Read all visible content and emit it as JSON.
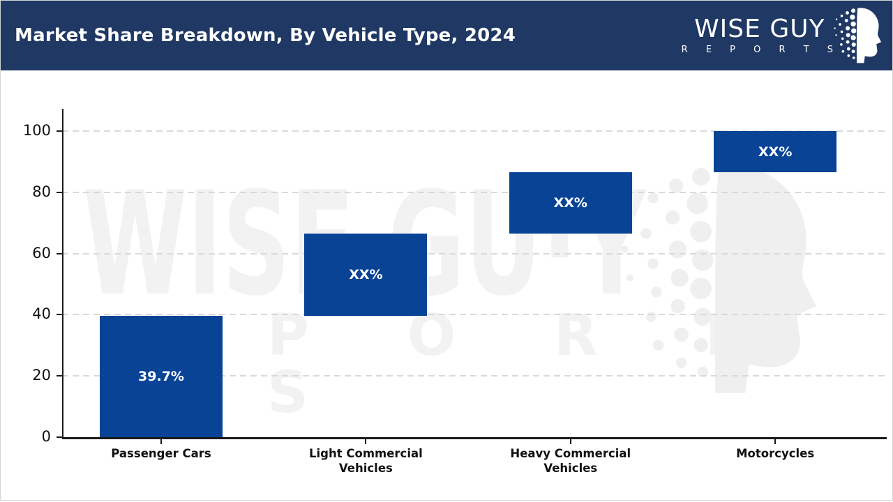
{
  "header": {
    "logo_wordmark": "WISE GUY",
    "logo_reports": "R E P O R T S"
  },
  "watermark": {
    "line1": "WISE GU·Y",
    "line2": "P O R T S"
  },
  "chart_data": {
    "type": "bar",
    "subtype": "floating-segment-waterfall",
    "title": "Market Share Breakdown, By Vehicle Type, 2024",
    "categories": [
      "Passenger Cars",
      "Light Commercial\nVehicles",
      "Heavy Commercial\nVehicles",
      "Motorcycles"
    ],
    "bars": [
      {
        "category": "Passenger Cars",
        "start": 0,
        "end": 39.7,
        "label": "39.7%"
      },
      {
        "category": "Light Commercial Vehicles",
        "start": 39.7,
        "end": 66.5,
        "label": "XX%"
      },
      {
        "category": "Heavy Commercial Vehicles",
        "start": 66.5,
        "end": 86.5,
        "label": "XX%"
      },
      {
        "category": "Motorcycles",
        "start": 86.5,
        "end": 100,
        "label": "XX%"
      }
    ],
    "ylim": [
      0,
      100
    ],
    "yticks": [
      0,
      20,
      40,
      60,
      80,
      100
    ],
    "xlabel": "",
    "ylabel": "",
    "legend": null,
    "grid": {
      "horizontal": true,
      "style": "dashed",
      "color": "#d9d9d9"
    },
    "colors": {
      "bar": "#084396",
      "bar_label": "#ffffff",
      "header_bg": "#1f3864",
      "axis": "#1a1a1a",
      "watermark": "#f2f2f2"
    }
  }
}
